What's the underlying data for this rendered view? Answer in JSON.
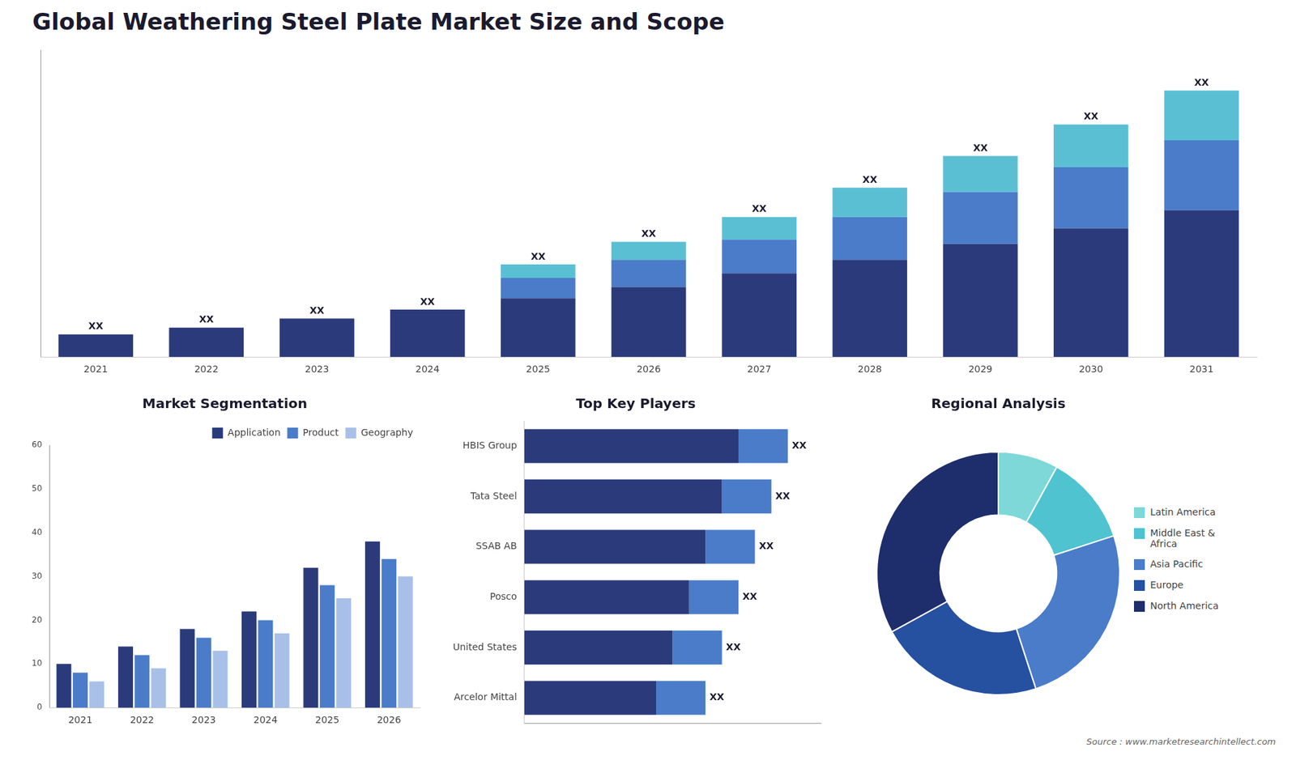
{
  "title": "Global Weathering Steel Plate Market Size and Scope",
  "annotations": [
    "Source : www.marketresearchintellect.com"
  ],
  "chart_data": [
    {
      "type": "bar",
      "categories": [
        "2021",
        "2022",
        "2023",
        "2024",
        "2025",
        "2026",
        "2027",
        "2028",
        "2029",
        "2030",
        "2031"
      ],
      "series": [
        {
          "color": "#2b3a7a",
          "values": [
            1.0,
            1.3,
            1.7,
            2.1,
            2.6,
            3.1,
            3.7,
            4.3,
            5.0,
            5.7,
            6.5
          ]
        },
        {
          "color": "#4a7cc9",
          "values": [
            0.0,
            0.0,
            0.0,
            0.0,
            0.9,
            1.2,
            1.5,
            1.9,
            2.3,
            2.7,
            3.1
          ]
        },
        {
          "color": "#5bbfd4",
          "values": [
            0.0,
            0.0,
            0.0,
            0.0,
            0.6,
            0.8,
            1.0,
            1.3,
            1.6,
            1.9,
            2.2
          ]
        }
      ],
      "stacked": true,
      "value_labels": [
        "XX",
        "XX",
        "XX",
        "XX",
        "XX",
        "XX",
        "XX",
        "XX",
        "XX",
        "XX",
        "XX"
      ],
      "ylim": [
        0,
        13.6
      ],
      "tick_labels": "x",
      "grid": false,
      "legend": false
    },
    {
      "type": "bar",
      "title": "Market Segmentation",
      "categories": [
        "2021",
        "2022",
        "2023",
        "2024",
        "2025",
        "2026"
      ],
      "series": [
        {
          "name": "Application",
          "color": "#2b3a7a",
          "values": [
            10,
            14,
            18,
            22,
            32,
            38
          ]
        },
        {
          "name": "Product",
          "color": "#4a7cc9",
          "values": [
            8,
            12,
            16,
            20,
            28,
            34
          ]
        },
        {
          "name": "Geography",
          "color": "#a8c0e8",
          "values": [
            6,
            9,
            13,
            17,
            25,
            30
          ]
        }
      ],
      "ylim": [
        0,
        60
      ],
      "yticks": [
        0,
        10,
        20,
        30,
        40,
        50,
        60
      ],
      "grid": false,
      "legend": "upper right"
    },
    {
      "type": "bar",
      "title": "Top Key Players",
      "orientation": "horizontal",
      "categories": [
        "HBIS Group",
        "Tata Steel",
        "SSAB AB",
        "Posco",
        "United States",
        "Arcelor Mittal"
      ],
      "series": [
        {
          "color": "#2b3a7a",
          "values": [
            6.5,
            6.0,
            5.5,
            5.0,
            4.5,
            4.0
          ]
        },
        {
          "color": "#4a7cc9",
          "values": [
            1.5,
            1.5,
            1.5,
            1.5,
            1.5,
            1.5
          ]
        }
      ],
      "stacked": true,
      "value_labels": [
        "XX",
        "XX",
        "XX",
        "XX",
        "XX",
        "XX"
      ],
      "xlim": [
        0,
        9
      ],
      "tick_labels": "y",
      "grid": false,
      "legend": false
    },
    {
      "type": "doughnut",
      "title": "Regional Analysis",
      "categories": [
        "Latin America",
        "Middle East &\nAfrica",
        "Asia Pacific",
        "Europe",
        "North America"
      ],
      "values": [
        8,
        12,
        25,
        22,
        33
      ],
      "colors": [
        "#7ed8d8",
        "#4fc3d0",
        "#4a7cc9",
        "#2650a0",
        "#1e2d6b"
      ],
      "legend": "right"
    }
  ]
}
